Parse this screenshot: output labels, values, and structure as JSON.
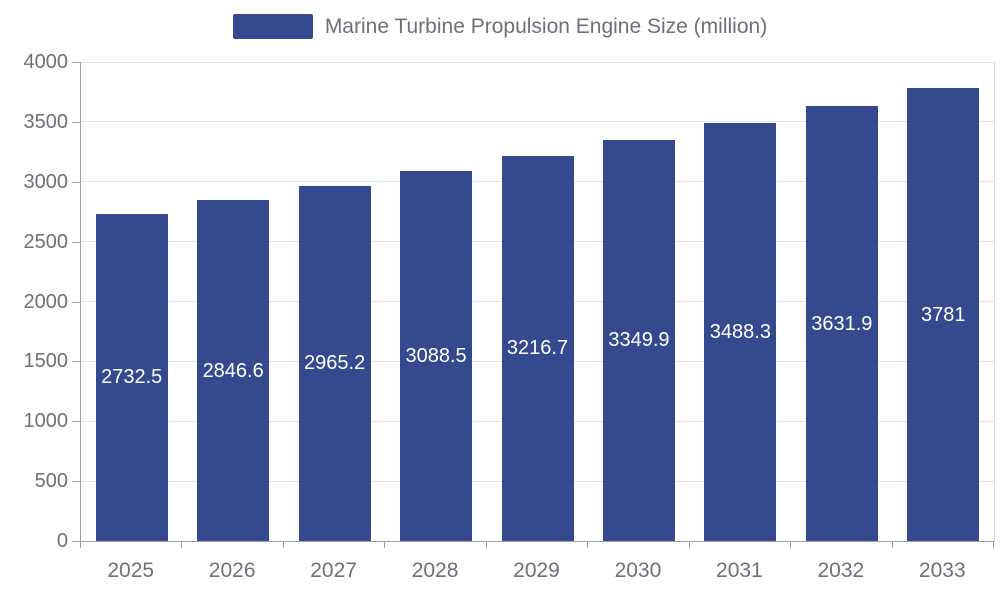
{
  "legend": {
    "label": "Marine Turbine Propulsion Engine Size (million)"
  },
  "colors": {
    "bar": "#35498e",
    "bar_label": "#ffffff",
    "axis_text": "#6e7079",
    "gridline": "#e0e4ee"
  },
  "chart_data": {
    "type": "bar",
    "title": "Marine Turbine Propulsion Engine Size (million)",
    "categories": [
      "2025",
      "2026",
      "2027",
      "2028",
      "2029",
      "2030",
      "2031",
      "2032",
      "2033"
    ],
    "values": [
      2732.5,
      2846.6,
      2965.2,
      3088.5,
      3216.7,
      3349.9,
      3488.3,
      3631.9,
      3781
    ],
    "xlabel": "",
    "ylabel": "",
    "ylim": [
      0,
      4000
    ],
    "ytick_interval": 500,
    "ytick_labels": [
      "0",
      "500",
      "1000",
      "1500",
      "2000",
      "2500",
      "3000",
      "3500",
      "4000"
    ],
    "grid": true,
    "legend_position": "top",
    "value_labels": "inside-center"
  }
}
